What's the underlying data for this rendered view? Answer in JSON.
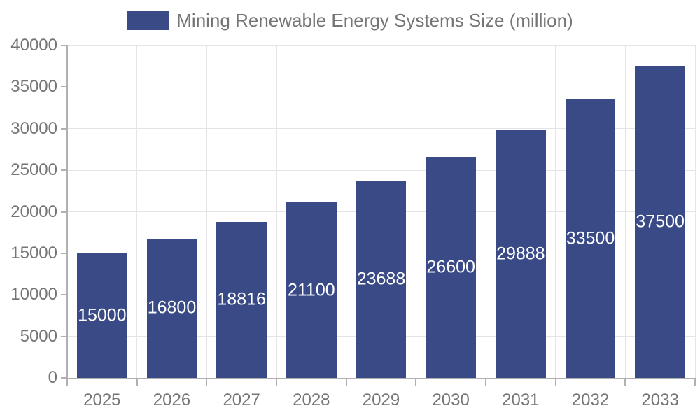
{
  "legend": {
    "label": "Mining Renewable Energy Systems Size (million)"
  },
  "chart_data": {
    "type": "bar",
    "title": "Mining Renewable Energy Systems Size (million)",
    "categories": [
      "2025",
      "2026",
      "2027",
      "2028",
      "2029",
      "2030",
      "2031",
      "2032",
      "2033"
    ],
    "values": [
      15000,
      16800,
      18816,
      21100,
      23688,
      26600,
      29888,
      33500,
      37500
    ],
    "bar_labels": [
      "15000",
      "16800",
      "18816",
      "21100",
      "23688",
      "26600",
      "29888",
      "33500",
      "37500"
    ],
    "xlabel": "",
    "ylabel": "",
    "ylim": [
      0,
      40000
    ],
    "yticks": [
      0,
      5000,
      10000,
      15000,
      20000,
      25000,
      30000,
      35000,
      40000
    ],
    "ytick_labels": [
      "0",
      "5000",
      "10000",
      "15000",
      "20000",
      "25000",
      "30000",
      "35000",
      "40000"
    ],
    "grid": true,
    "legend_position": "top-center",
    "value_label_position": "inside-center"
  },
  "colors": {
    "bar": "#394A87",
    "axis_text": "#757575",
    "value_label_text": "#FFFFFF",
    "grid_line": "#E3E3E8",
    "axis_line": "#B0B0B0",
    "background": "#FFFFFF"
  }
}
